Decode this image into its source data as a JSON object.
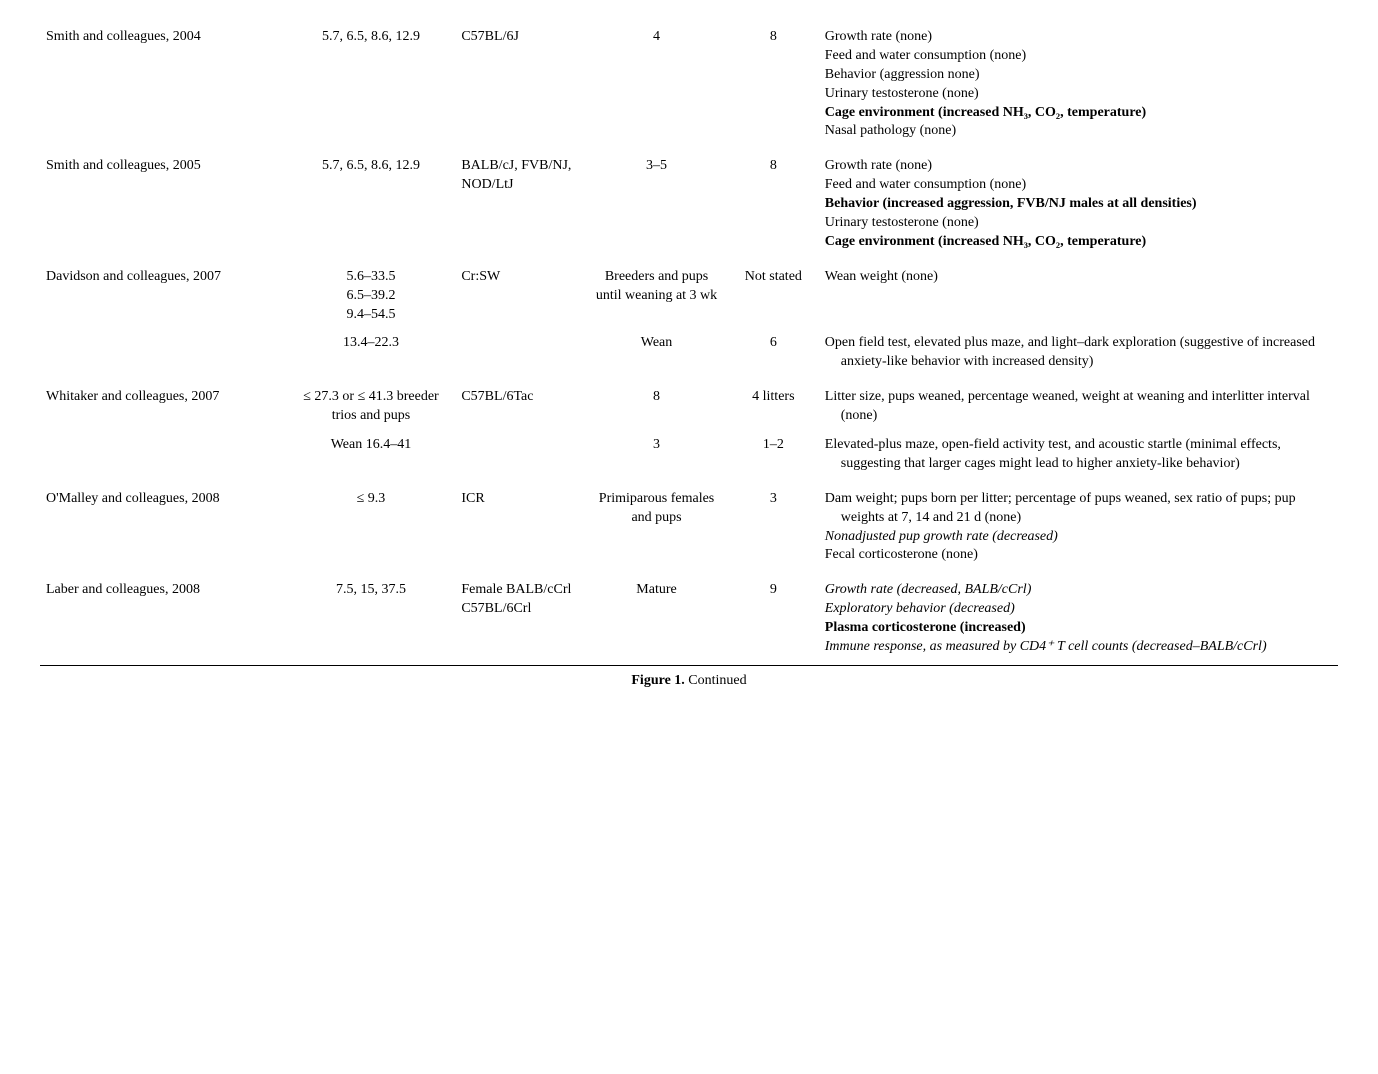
{
  "rows": [
    {
      "ref": "Smith and colleagues, 2004",
      "density": "5.7, 6.5, 8.6, 12.9",
      "strain": "C57BL/6J",
      "age": "4",
      "duration": "8",
      "outcomes": [
        {
          "text": "Growth rate (none)"
        },
        {
          "text": "Feed and water consumption (none)"
        },
        {
          "text": "Behavior (aggression none)"
        },
        {
          "text": "Urinary testosterone (none)"
        },
        {
          "text": "Cage environment (increased NH₃, CO₂, temperature)",
          "style": "bold"
        },
        {
          "text": "Nasal pathology (none)"
        }
      ]
    },
    {
      "ref": "Smith and colleagues, 2005",
      "density": "5.7, 6.5, 8.6, 12.9",
      "strain": "BALB/cJ, FVB/NJ, NOD/LtJ",
      "age": "3–5",
      "duration": "8",
      "outcomes": [
        {
          "text": "Growth rate (none)"
        },
        {
          "text": "Feed and water consumption (none)"
        },
        {
          "text": "Behavior (increased aggression,  FVB/NJ males at all densities)",
          "style": "bold"
        },
        {
          "text": "Urinary testosterone (none)"
        },
        {
          "text": "Cage environment (increased NH₃, CO₂, temperature)",
          "style": "bold"
        }
      ]
    },
    {
      "ref": "Davidson and colleagues, 2007",
      "density": "5.6–33.5\n6.5–39.2\n9.4–54.5",
      "strain": "Cr:SW",
      "age": "Breeders and pups until weaning at 3 wk",
      "duration": "Not stated",
      "outcomes": [
        {
          "text": "Wean weight (none)"
        }
      ],
      "subrow": {
        "density": "13.4–22.3",
        "age": "Wean",
        "duration": "6",
        "outcomes": [
          {
            "text": "Open field test, elevated plus maze, and light–dark exploration (suggestive of increased anxiety-like behavior with increased density)"
          }
        ]
      }
    },
    {
      "ref": "Whitaker and colleagues, 2007",
      "density": "≤ 27.3 or ≤ 41.3 breeder trios and pups",
      "strain": "C57BL/6Tac",
      "age": "8",
      "duration": "4 litters",
      "outcomes": [
        {
          "text": "Litter size, pups weaned, percentage weaned, weight at weaning and interlitter interval (none)"
        }
      ],
      "subrow": {
        "density": "Wean 16.4–41",
        "age": "3",
        "duration": "1–2",
        "outcomes": [
          {
            "text": "Elevated-plus maze, open-field activity test, and acoustic startle (minimal effects, suggesting that larger cages might lead to higher anxiety-like behavior)"
          }
        ]
      }
    },
    {
      "ref": "O'Malley and colleagues, 2008",
      "density": "≤ 9.3",
      "strain": "ICR",
      "age": "Primiparous females and pups",
      "duration": "3",
      "outcomes": [
        {
          "text": "Dam weight; pups born per litter; percentage of pups weaned, sex ratio of pups; pup weights at 7, 14 and 21 d (none)"
        },
        {
          "text": "Nonadjusted pup growth rate (decreased)",
          "style": "ital"
        },
        {
          "text": "Fecal corticosterone (none)"
        }
      ]
    },
    {
      "ref": "Laber and colleagues, 2008",
      "density": "7.5, 15, 37.5",
      "strain": "Female BALB/cCrl C57BL/6Crl",
      "age": "Mature",
      "duration": "9",
      "outcomes": [
        {
          "text": "Growth rate (decreased, BALB/cCrl)",
          "style": "ital"
        },
        {
          "text": "Exploratory behavior (decreased)",
          "style": "ital"
        },
        {
          "text": "Plasma corticosterone (increased)",
          "style": "bold"
        },
        {
          "text": "Immune response, as measured by CD4⁺ T cell counts (decreased–BALB/cCrl)",
          "style": "ital"
        }
      ],
      "last": true
    }
  ],
  "caption_prefix": "Figure 1.",
  "caption_rest": " Continued",
  "styling": {
    "font_family": "Georgia, serif",
    "font_size_pt": 11,
    "text_color": "#000000",
    "background_color": "#ffffff",
    "rule_color": "#000000",
    "col_widths_pct": [
      19,
      13,
      10,
      11,
      7,
      40
    ],
    "line_height": 1.35
  }
}
